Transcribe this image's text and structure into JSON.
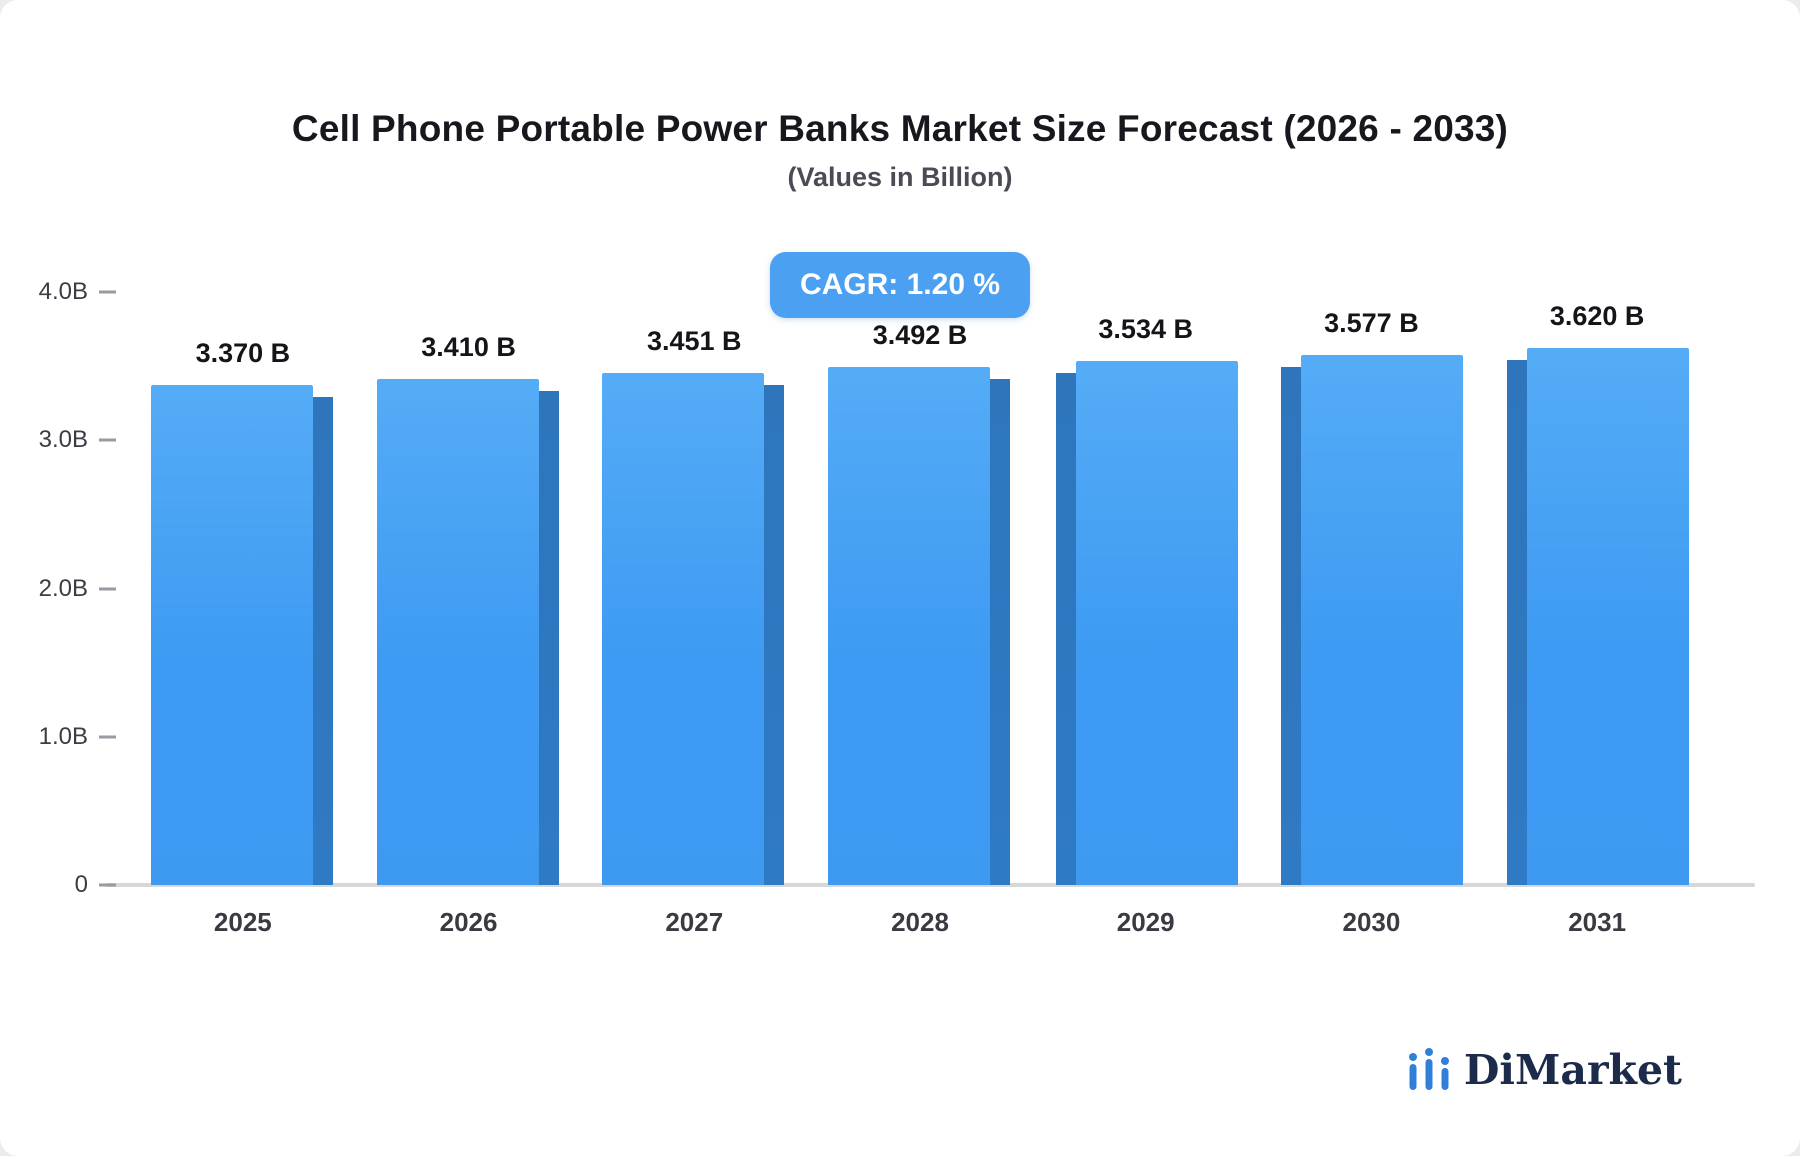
{
  "header": {
    "title": "Cell Phone Portable Power Banks Market Size Forecast (2026 - 2033)",
    "subtitle": "(Values in Billion)"
  },
  "badge": {
    "label": "CAGR: 1.20 %"
  },
  "chart_data": {
    "type": "bar",
    "categories": [
      "2025",
      "2026",
      "2027",
      "2028",
      "2029",
      "2030",
      "2031"
    ],
    "values": [
      3.37,
      3.41,
      3.451,
      3.492,
      3.534,
      3.577,
      3.62
    ],
    "value_labels": [
      "3.370 B",
      "3.410 B",
      "3.451 B",
      "3.492 B",
      "3.534 B",
      "3.577 B",
      "3.620 B"
    ],
    "title": "Cell Phone Portable Power Banks Market Size Forecast (2026 - 2033)",
    "subtitle": "(Values in Billion)",
    "xlabel": "",
    "ylabel": "",
    "ylim": [
      0,
      4
    ],
    "ytick_values": [
      4,
      3,
      2,
      1,
      0
    ],
    "ytick_labels": [
      "4.0B",
      "3.0B",
      "2.0B",
      "1.0B",
      "0"
    ],
    "grid": false,
    "legend": "none",
    "bar_color": "#3E9BF3",
    "bar_side_color": "#2E75BC"
  },
  "logo": {
    "text": "DiMarket",
    "icon": "bar-chart-dots-icon",
    "color": "#2F80DB"
  }
}
